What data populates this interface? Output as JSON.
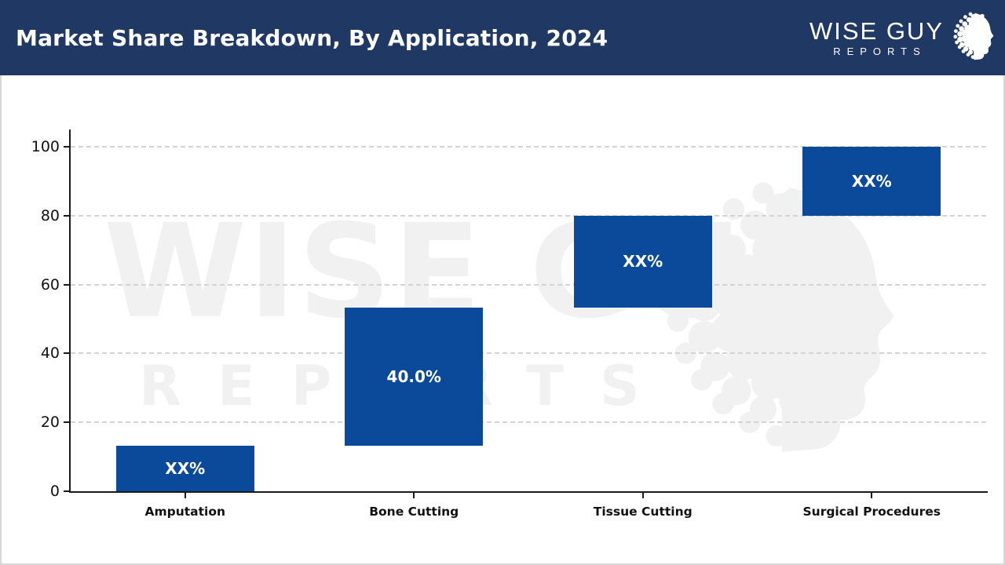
{
  "header": {
    "title": "Market Share Breakdown, By Application, 2024",
    "logo": {
      "line1": "WISE GUY",
      "line2": "REPORTS"
    }
  },
  "watermark": {
    "line1": "WISE GUY",
    "line2": "REPORTS"
  },
  "colors": {
    "header_bg": "#1f3864",
    "header_text": "#ffffff",
    "bar_blue": "#0b4a9b",
    "gridline_gray": "#d4d4d4",
    "axis_black": "#1a1a1a",
    "watermark_gray": "#f1f1f1",
    "page_border_gray": "#d8d8d8"
  },
  "chart_data": {
    "type": "bar",
    "subtype": "floating-waterfall-market-share",
    "title": "Market Share Breakdown, By Application, 2024",
    "categories": [
      "Amputation",
      "Bone Cutting",
      "Tissue Cutting",
      "Surgical Procedures"
    ],
    "series": [
      {
        "name": "Market Share %",
        "segments": [
          {
            "category": "Amputation",
            "start": 0,
            "end": 13.3,
            "label": "XX%"
          },
          {
            "category": "Bone Cutting",
            "start": 13.3,
            "end": 53.3,
            "label": "40.0%"
          },
          {
            "category": "Tissue Cutting",
            "start": 53.3,
            "end": 80,
            "label": "XX%"
          },
          {
            "category": "Surgical Procedures",
            "start": 80,
            "end": 100,
            "label": "XX%"
          }
        ]
      }
    ],
    "xlabel": "",
    "ylabel": "",
    "ylim": [
      0,
      100
    ],
    "yticks": [
      0,
      20,
      40,
      60,
      80,
      100
    ],
    "grid": "horizontal-dashed",
    "legend": "none",
    "bar_color": "#0b4a9b",
    "bar_label_color": "#ffffff"
  }
}
